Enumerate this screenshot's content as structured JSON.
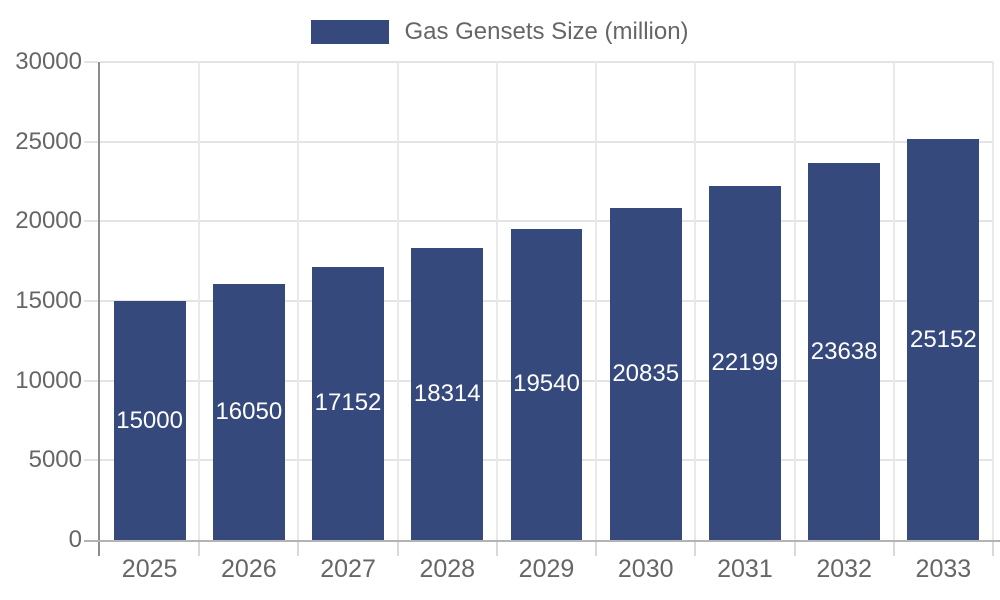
{
  "legend": {
    "label": "Gas Gensets Size (million)"
  },
  "colors": {
    "background": "#ffffff",
    "bar": "#36497d",
    "bar_label": "#ffffff",
    "axis_text": "#666666",
    "grid": "#e4e4e4",
    "grid_v": "#e9e9e9",
    "axis_line": "#8c8c8c",
    "baseline": "#b3b3b3",
    "tick": "#d9d9d9"
  },
  "chart_data": {
    "type": "bar",
    "title": "Gas Gensets Size (million)",
    "categories": [
      "2025",
      "2026",
      "2027",
      "2028",
      "2029",
      "2030",
      "2031",
      "2032",
      "2033"
    ],
    "values": [
      15000,
      16050,
      17152,
      18314,
      19540,
      20835,
      22199,
      23638,
      25152
    ],
    "xlabel": "",
    "ylabel": "",
    "ylim": [
      0,
      30000
    ],
    "yticks": [
      0,
      5000,
      10000,
      15000,
      20000,
      25000,
      30000
    ],
    "grid": true,
    "legend_position": "top",
    "value_labels": "inside-center"
  }
}
